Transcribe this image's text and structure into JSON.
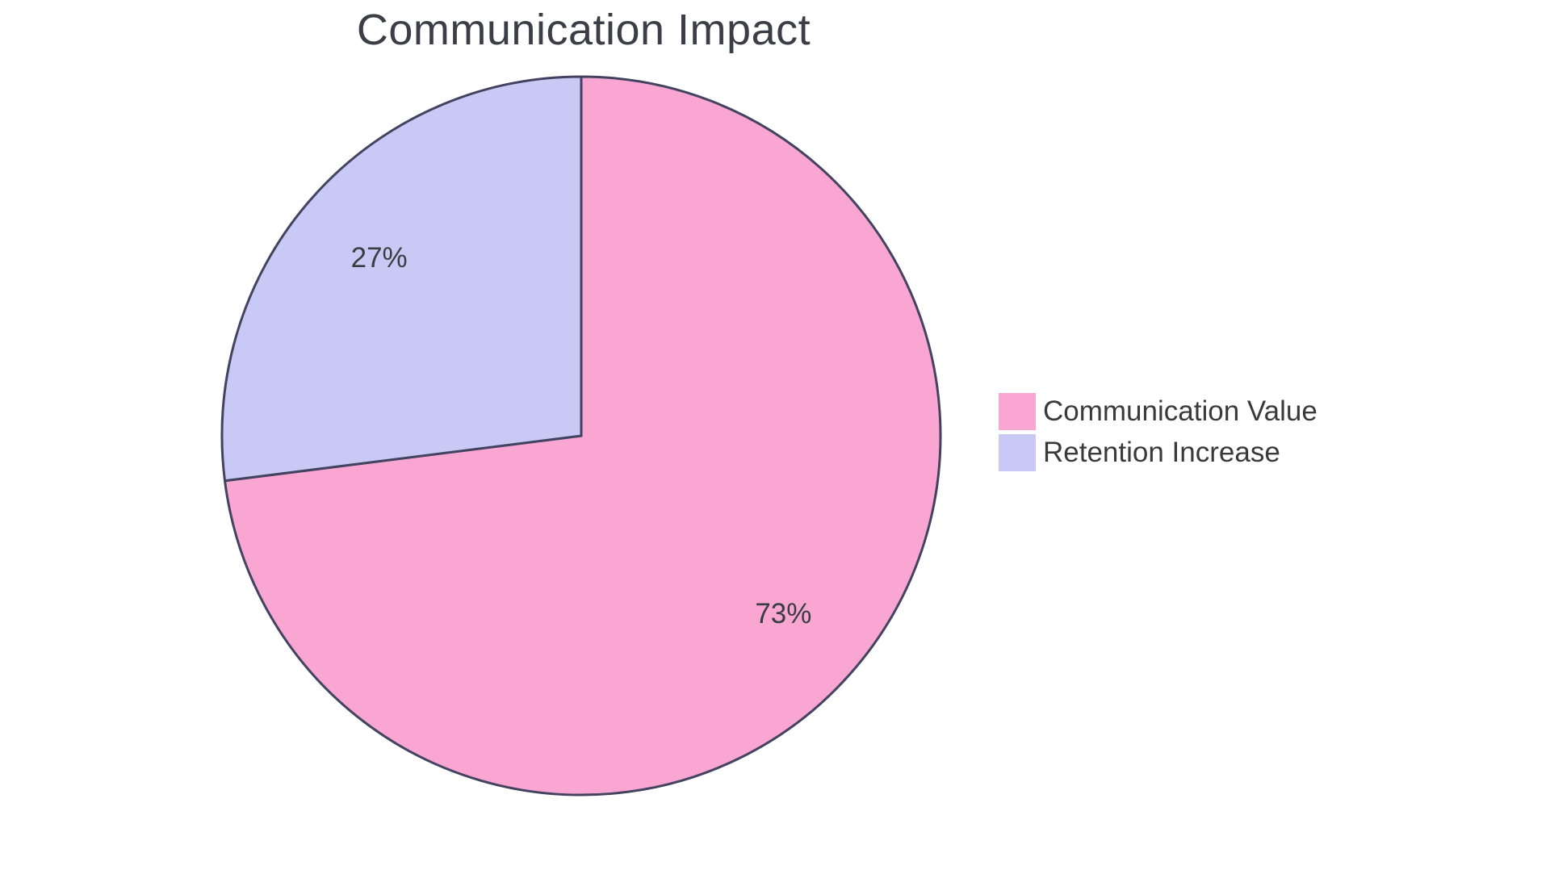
{
  "chart_data": {
    "type": "pie",
    "title": "Communication Impact",
    "categories": [
      "Communication Value",
      "Retention Increase"
    ],
    "values": [
      73,
      27
    ],
    "slice_labels": [
      "73%",
      "27%"
    ],
    "colors": [
      "#F9A6D2",
      "#C9C9F6"
    ],
    "stroke_color": "#434361",
    "stroke_width": 3,
    "start_angle_deg": 0,
    "direction": "clockwise",
    "title_color": "#3B3E46",
    "slice_label_color": "#3A3D42",
    "legend": {
      "position": "right",
      "entries": [
        "Communication Value",
        "Retention Increase"
      ],
      "text_color": "#3A3A3A"
    }
  }
}
